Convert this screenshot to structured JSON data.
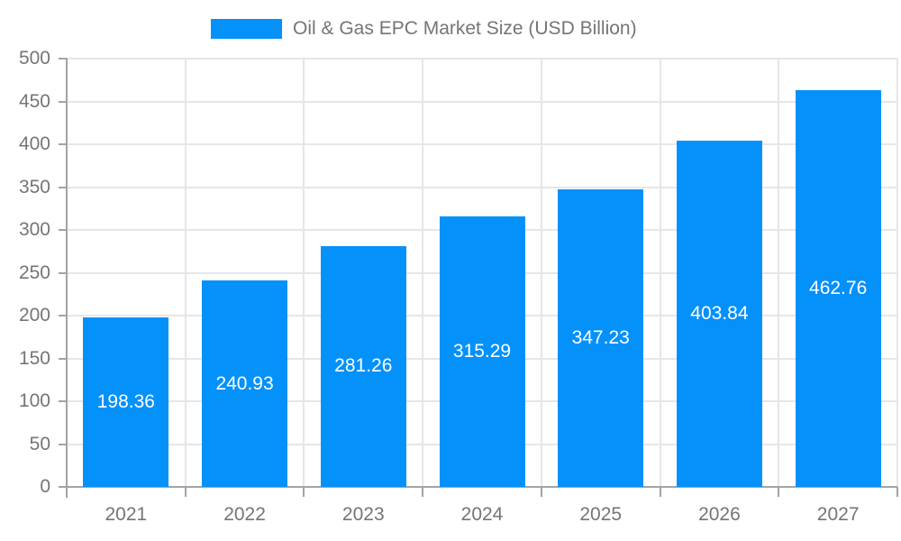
{
  "chart_data": {
    "type": "bar",
    "title": "Oil & Gas EPC Market Size (USD Billion)",
    "categories": [
      "2021",
      "2022",
      "2023",
      "2024",
      "2025",
      "2026",
      "2027"
    ],
    "values": [
      198.36,
      240.93,
      281.26,
      315.29,
      347.23,
      403.84,
      462.76
    ],
    "xlabel": "",
    "ylabel": "",
    "ylim": [
      0,
      500
    ],
    "ytick_step": 50,
    "ytick_labels": [
      "0",
      "50",
      "100",
      "150",
      "200",
      "250",
      "300",
      "350",
      "400",
      "450",
      "500"
    ],
    "grid": true,
    "legend": {
      "position": "top",
      "label": "Oil & Gas EPC Market Size (USD Billion)"
    },
    "colors": {
      "bar": "#0591FA",
      "axis": "#a3a3a3",
      "gridline": "#e6e6e6",
      "tick_text": "#757575",
      "bar_label": "#ffffff",
      "background": "#ffffff"
    }
  }
}
